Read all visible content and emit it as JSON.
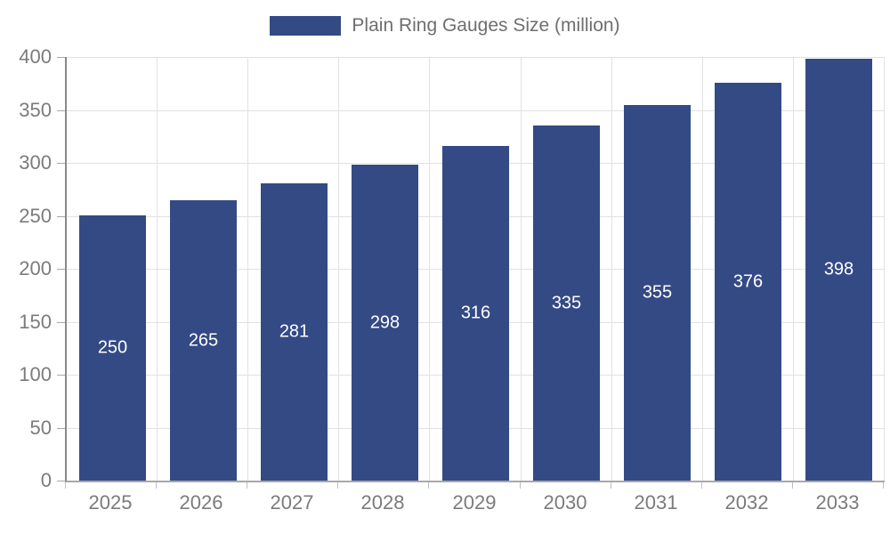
{
  "legend": {
    "label": "Plain Ring Gauges Size (million)"
  },
  "chart_data": {
    "type": "bar",
    "title": "Plain Ring Gauges Size (million)",
    "categories": [
      "2025",
      "2026",
      "2027",
      "2028",
      "2029",
      "2030",
      "2031",
      "2032",
      "2033"
    ],
    "values": [
      250,
      265,
      281,
      298,
      316,
      335,
      355,
      376,
      398
    ],
    "xlabel": "",
    "ylabel": "",
    "ylim": [
      0,
      400
    ],
    "yticks": [
      0,
      50,
      100,
      150,
      200,
      250,
      300,
      350,
      400
    ],
    "grid": true,
    "legend_position": "top-center",
    "bar_color": "#344a85",
    "value_label_color": "#ffffff",
    "grid_color": "#e2e2e6",
    "axis_line_color": "#8a8a8a",
    "axis_text_color": "#7b7b7b",
    "legend_text_color": "#6e6e6e"
  }
}
